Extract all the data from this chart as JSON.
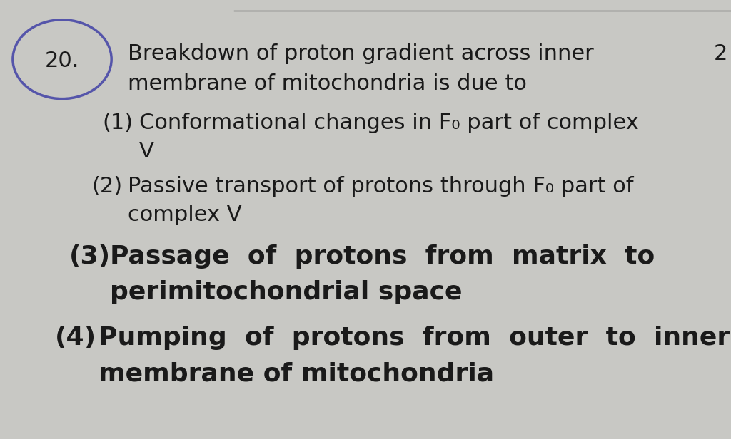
{
  "bg_color": "#c8c8c4",
  "text_color": "#1a1a1a",
  "question_number": "20.",
  "question_text_line1": "Breakdown of proton gradient across inner",
  "question_text_line2": "membrane of mitochondria is due to",
  "right_number": "2",
  "options": [
    {
      "number": "(1)",
      "lines": [
        "Conformational changes in F₀ part of complex",
        "V"
      ]
    },
    {
      "number": "(2)",
      "lines": [
        "Passive transport of protons through F₀ part of",
        "complex V"
      ]
    },
    {
      "number": "(3)",
      "lines": [
        "Passage  of  protons  from  matrix  to",
        "perimitochondrial space"
      ]
    },
    {
      "number": "(4)",
      "lines": [
        "Pumping  of  protons  from  outer  to  inner",
        "membrane of mitochondria"
      ]
    }
  ],
  "circle_color": "#5555aa",
  "line_color": "#555555",
  "font_size_question": 22,
  "font_size_options_12": 22,
  "font_size_options_34": 26,
  "font_size_number_12": 22,
  "font_size_number_34": 26,
  "font_size_qnum": 22
}
